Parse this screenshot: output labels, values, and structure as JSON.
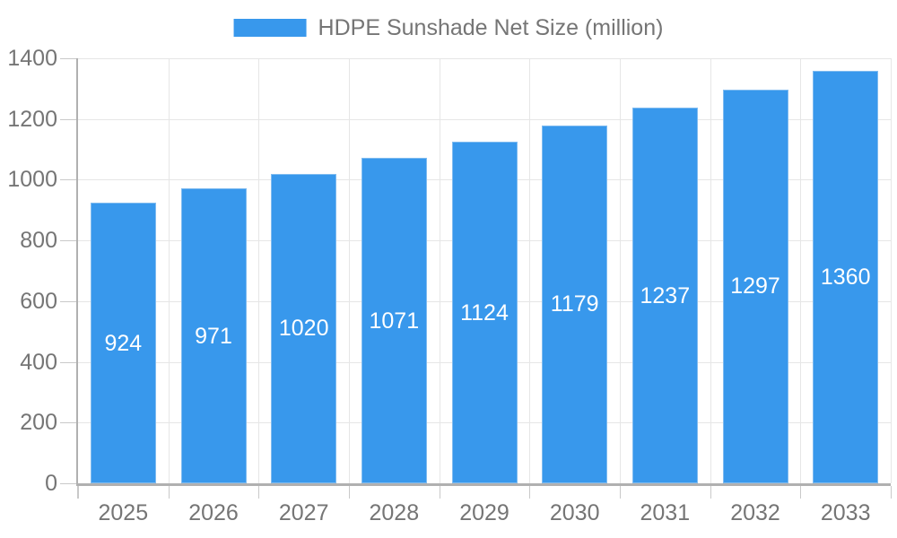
{
  "chart_data": {
    "type": "bar",
    "title": "",
    "series": [
      {
        "name": "HDPE Sunshade Net Size (million)",
        "values": [
          924,
          971,
          1020,
          1071,
          1124,
          1179,
          1237,
          1297,
          1360
        ]
      }
    ],
    "categories": [
      "2025",
      "2026",
      "2027",
      "2028",
      "2029",
      "2030",
      "2031",
      "2032",
      "2033"
    ],
    "xlabel": "",
    "ylabel": "",
    "ylim": [
      0,
      1400
    ],
    "yticks": [
      0,
      200,
      400,
      600,
      800,
      1000,
      1200,
      1400
    ],
    "grid": true,
    "legend_position": "top-center",
    "value_labels": "inside-middle-white",
    "colors": {
      "bar": "#3898EC",
      "bar_edge": "#7FBBF0",
      "value_label_text": "#FFFFFF",
      "axis_text": "#757575",
      "axis_line": "#B0B0B0",
      "tick_line": "#C9C9C9",
      "grid_line": "#E6E6E6",
      "background": "#FFFFFF"
    }
  }
}
